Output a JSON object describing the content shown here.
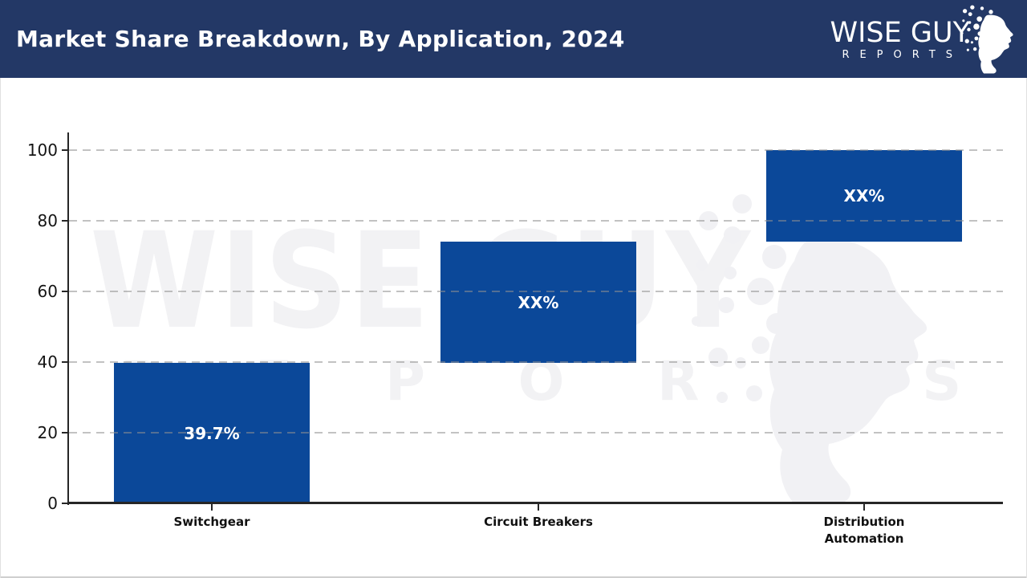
{
  "header": {
    "title": "Market Share Breakdown, By Application, 2024",
    "logo": {
      "line1": "WISE GUY",
      "line2": "REPORTS"
    }
  },
  "watermark": {
    "line1": "WISE GUY",
    "line2": "R E P O R T S"
  },
  "colors": {
    "header_bg": "#233866",
    "bar": "#0b4899",
    "title_text": "#ffffff",
    "bar_label_text": "#ffffff",
    "watermark": "#f2f2f4",
    "grid": "#8f8f8f",
    "axis": "#262626"
  },
  "chart_data": {
    "type": "bar",
    "subtype": "waterfall",
    "title": "Market Share Breakdown, By Application, 2024",
    "categories": [
      "Switchgear",
      "Circuit Breakers",
      "Distribution Automation"
    ],
    "segments": [
      {
        "category": "Switchgear",
        "start": 0,
        "end": 39.7,
        "label": "39.7%"
      },
      {
        "category": "Circuit Breakers",
        "start": 39.7,
        "end": 74,
        "label": "XX%"
      },
      {
        "category": "Distribution Automation",
        "start": 74,
        "end": 100,
        "label": "XX%"
      }
    ],
    "xlabel": "",
    "ylabel": "",
    "yticks": [
      0,
      20,
      40,
      60,
      80,
      100
    ],
    "ylim": [
      0,
      105
    ],
    "grid": "horizontal-dashed",
    "legend": "none"
  }
}
